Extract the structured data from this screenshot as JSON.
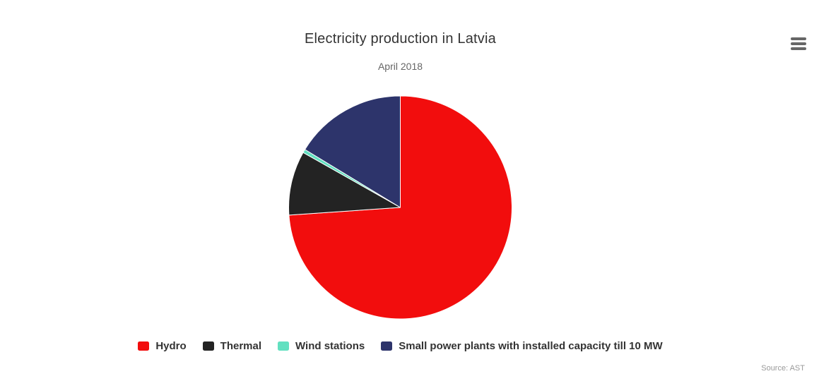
{
  "chart_data": {
    "type": "pie",
    "title": "Electricity production in Latvia",
    "subtitle": "April 2018",
    "categories": [
      "Hydro",
      "Thermal",
      "Wind stations",
      "Small power plants with installed capacity till 10 MW"
    ],
    "values": [
      73.9,
      9.3,
      0.5,
      16.3
    ],
    "unit": "% of total (estimated from slice angles)",
    "colors": [
      "#f20d0d",
      "#232323",
      "#62e0c0",
      "#2d346b"
    ],
    "slice_border_color": "#ffffff",
    "background_color": "#ffffff",
    "start_angle_deg": 0,
    "direction": "clockwise",
    "data_labels": false,
    "legend_position": "bottom",
    "credits": "Source: AST"
  },
  "ui": {
    "export_menu_icon": "hamburger"
  }
}
